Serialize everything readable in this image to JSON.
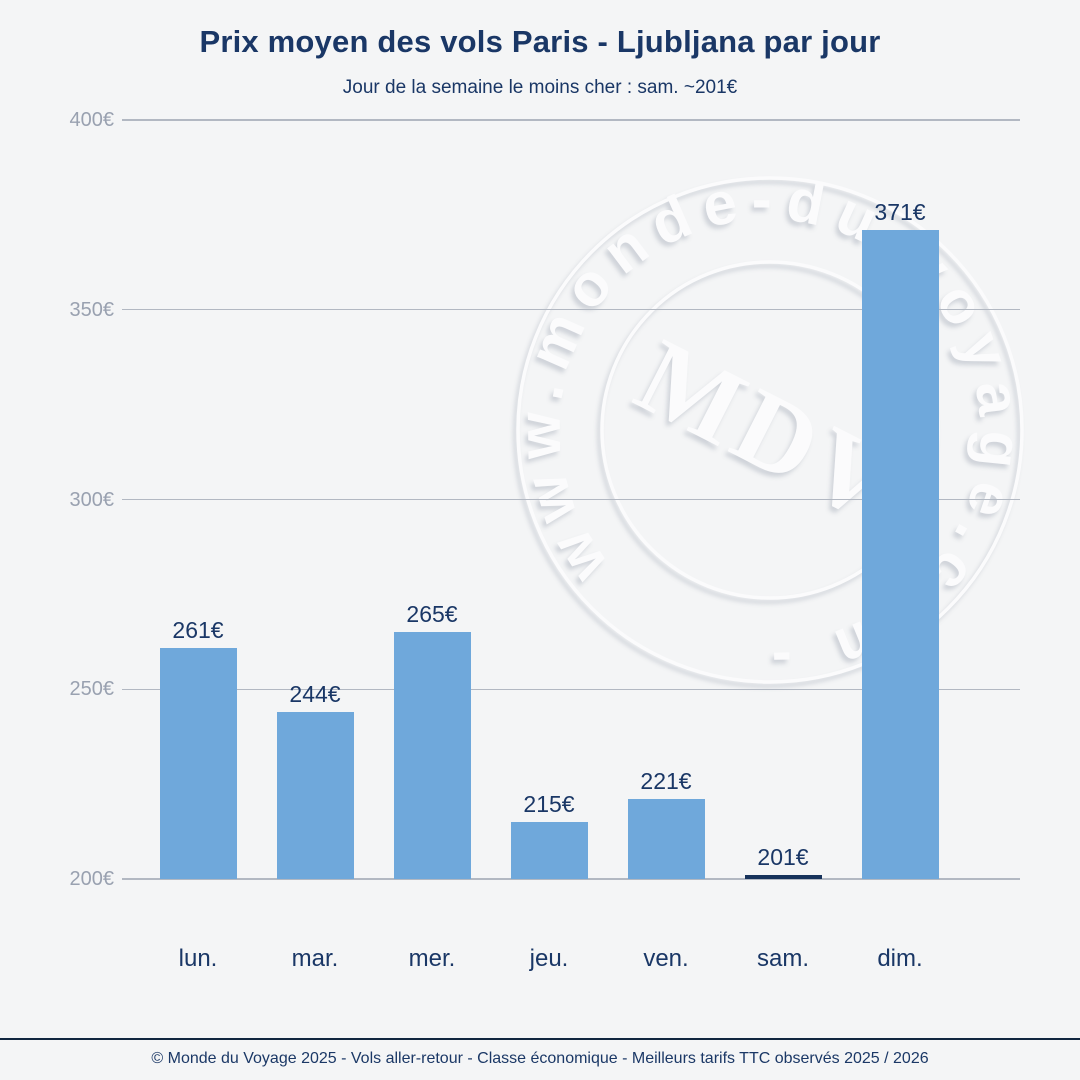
{
  "colors": {
    "background": "#f4f5f6",
    "navy": "#1a3766",
    "bar": "#6fa8db",
    "bar_highlight": "#17335b",
    "grid": "#b2b8c2",
    "axis_label": "#99a1b0",
    "footer_line": "#10263f"
  },
  "watermark": {
    "circle_text": "www.monde-du-voyage.com -",
    "center_text": "MDV"
  },
  "footer": {
    "text": "© Monde du Voyage 2025 - Vols aller-retour - Classe économique - Meilleurs tarifs TTC observés 2025 / 2026"
  },
  "chart_data": {
    "type": "bar",
    "title": "Prix moyen des vols Paris - Ljubljana par jour",
    "subtitle": "Jour de la semaine le moins cher : sam. ~201€",
    "categories": [
      "lun.",
      "mar.",
      "mer.",
      "jeu.",
      "ven.",
      "sam.",
      "dim."
    ],
    "values": [
      261,
      244,
      265,
      215,
      221,
      201,
      371
    ],
    "value_labels": [
      "261€",
      "244€",
      "265€",
      "215€",
      "221€",
      "201€",
      "371€"
    ],
    "highlight_index": 5,
    "highlight_meaning": "cheapest day",
    "currency": "€",
    "ylim": [
      200,
      400
    ],
    "yticks": [
      400,
      350,
      300,
      250,
      200
    ],
    "ytick_labels": [
      "400€",
      "350€",
      "300€",
      "250€",
      "200€"
    ],
    "grid": true,
    "legend": false
  }
}
